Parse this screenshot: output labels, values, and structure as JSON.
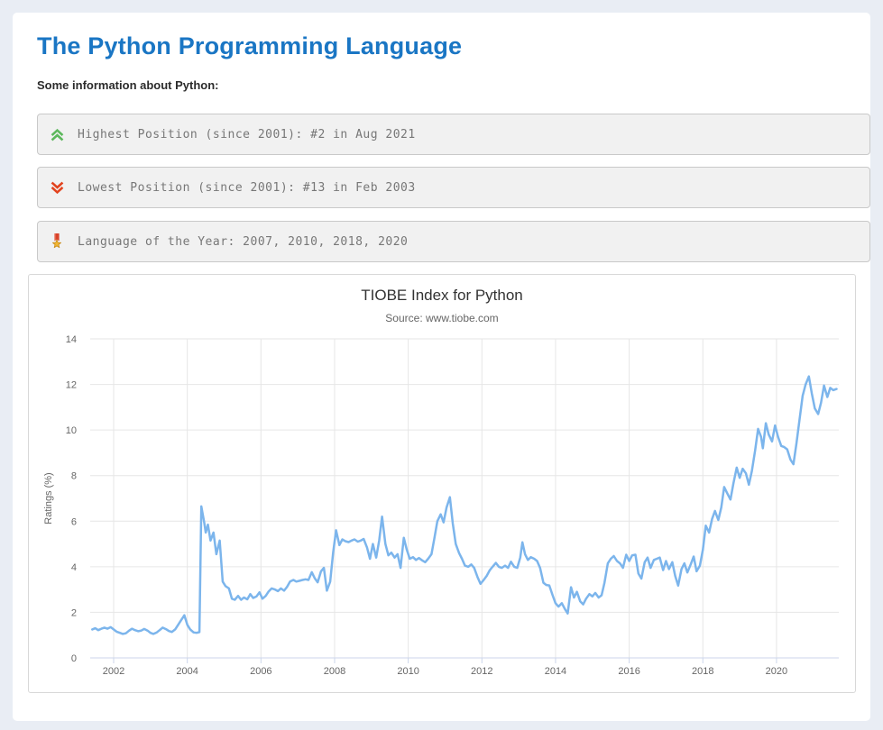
{
  "page": {
    "background": "#e9edf4"
  },
  "header": {
    "title": "The Python Programming Language",
    "intro": "Some information about Python:"
  },
  "facts": [
    {
      "icon": "double-chevron-up-icon",
      "icon_color": "#5cb85c",
      "text": "Highest Position (since 2001): #2 in Aug 2021"
    },
    {
      "icon": "double-chevron-down-icon",
      "icon_color": "#e2431e",
      "text": "Lowest Position (since 2001): #13 in Feb 2003"
    },
    {
      "icon": "medal-icon",
      "icon_color": "#f2b632",
      "ribbon_color": "#d8432a",
      "text": "Language of the Year: 2007, 2010, 2018, 2020"
    }
  ],
  "chart_data": {
    "type": "line",
    "title": "TIOBE Index for Python",
    "subtitle": "Source: www.tiobe.com",
    "xlabel": "",
    "ylabel": "Ratings (%)",
    "ylim": [
      0,
      14
    ],
    "xlim": [
      2001.363,
      2021.692
    ],
    "yticks": [
      0,
      2,
      4,
      6,
      8,
      10,
      12,
      14
    ],
    "xticks": [
      2002,
      2004,
      2006,
      2008,
      2010,
      2012,
      2014,
      2016,
      2018,
      2020
    ],
    "grid": true,
    "legend": "none",
    "line_color": "#7cb5ec",
    "grid_color": "#e6e6e6",
    "axis_color": "#ccd6eb",
    "series": [
      {
        "name": "Python",
        "points": [
          [
            2001.42,
            1.25
          ],
          [
            2001.5,
            1.3
          ],
          [
            2001.58,
            1.22
          ],
          [
            2001.67,
            1.28
          ],
          [
            2001.75,
            1.33
          ],
          [
            2001.83,
            1.28
          ],
          [
            2001.92,
            1.35
          ],
          [
            2002.0,
            1.25
          ],
          [
            2002.08,
            1.15
          ],
          [
            2002.17,
            1.1
          ],
          [
            2002.25,
            1.05
          ],
          [
            2002.33,
            1.08
          ],
          [
            2002.42,
            1.2
          ],
          [
            2002.5,
            1.28
          ],
          [
            2002.58,
            1.22
          ],
          [
            2002.67,
            1.17
          ],
          [
            2002.75,
            1.2
          ],
          [
            2002.83,
            1.27
          ],
          [
            2002.92,
            1.2
          ],
          [
            2003.0,
            1.1
          ],
          [
            2003.08,
            1.05
          ],
          [
            2003.17,
            1.12
          ],
          [
            2003.25,
            1.22
          ],
          [
            2003.33,
            1.33
          ],
          [
            2003.42,
            1.26
          ],
          [
            2003.5,
            1.18
          ],
          [
            2003.58,
            1.14
          ],
          [
            2003.67,
            1.25
          ],
          [
            2003.75,
            1.45
          ],
          [
            2003.83,
            1.65
          ],
          [
            2003.92,
            1.87
          ],
          [
            2004.0,
            1.45
          ],
          [
            2004.08,
            1.25
          ],
          [
            2004.17,
            1.12
          ],
          [
            2004.25,
            1.1
          ],
          [
            2004.33,
            1.13
          ],
          [
            2004.38,
            6.65
          ],
          [
            2004.46,
            5.95
          ],
          [
            2004.5,
            5.5
          ],
          [
            2004.56,
            5.85
          ],
          [
            2004.63,
            5.15
          ],
          [
            2004.71,
            5.5
          ],
          [
            2004.79,
            4.55
          ],
          [
            2004.88,
            5.15
          ],
          [
            2004.96,
            3.35
          ],
          [
            2005.04,
            3.15
          ],
          [
            2005.13,
            3.05
          ],
          [
            2005.21,
            2.6
          ],
          [
            2005.29,
            2.55
          ],
          [
            2005.38,
            2.72
          ],
          [
            2005.46,
            2.55
          ],
          [
            2005.54,
            2.65
          ],
          [
            2005.63,
            2.57
          ],
          [
            2005.71,
            2.8
          ],
          [
            2005.79,
            2.63
          ],
          [
            2005.88,
            2.7
          ],
          [
            2005.96,
            2.88
          ],
          [
            2006.04,
            2.6
          ],
          [
            2006.13,
            2.72
          ],
          [
            2006.21,
            2.92
          ],
          [
            2006.29,
            3.05
          ],
          [
            2006.38,
            3.0
          ],
          [
            2006.46,
            2.93
          ],
          [
            2006.54,
            3.05
          ],
          [
            2006.63,
            2.95
          ],
          [
            2006.71,
            3.12
          ],
          [
            2006.79,
            3.35
          ],
          [
            2006.88,
            3.42
          ],
          [
            2006.96,
            3.35
          ],
          [
            2007.04,
            3.38
          ],
          [
            2007.13,
            3.42
          ],
          [
            2007.21,
            3.45
          ],
          [
            2007.29,
            3.42
          ],
          [
            2007.38,
            3.76
          ],
          [
            2007.46,
            3.5
          ],
          [
            2007.54,
            3.32
          ],
          [
            2007.63,
            3.8
          ],
          [
            2007.71,
            3.95
          ],
          [
            2007.79,
            2.95
          ],
          [
            2007.88,
            3.35
          ],
          [
            2007.96,
            4.6
          ],
          [
            2008.04,
            5.6
          ],
          [
            2008.13,
            4.95
          ],
          [
            2008.21,
            5.2
          ],
          [
            2008.29,
            5.12
          ],
          [
            2008.38,
            5.08
          ],
          [
            2008.46,
            5.15
          ],
          [
            2008.54,
            5.2
          ],
          [
            2008.63,
            5.1
          ],
          [
            2008.71,
            5.15
          ],
          [
            2008.79,
            5.22
          ],
          [
            2008.88,
            4.85
          ],
          [
            2008.96,
            4.35
          ],
          [
            2009.04,
            5.0
          ],
          [
            2009.13,
            4.4
          ],
          [
            2009.21,
            5.15
          ],
          [
            2009.29,
            6.2
          ],
          [
            2009.38,
            5.0
          ],
          [
            2009.46,
            4.5
          ],
          [
            2009.54,
            4.62
          ],
          [
            2009.63,
            4.4
          ],
          [
            2009.71,
            4.55
          ],
          [
            2009.79,
            3.95
          ],
          [
            2009.88,
            5.27
          ],
          [
            2009.96,
            4.75
          ],
          [
            2010.04,
            4.35
          ],
          [
            2010.13,
            4.42
          ],
          [
            2010.21,
            4.3
          ],
          [
            2010.29,
            4.38
          ],
          [
            2010.38,
            4.28
          ],
          [
            2010.46,
            4.2
          ],
          [
            2010.54,
            4.35
          ],
          [
            2010.63,
            4.55
          ],
          [
            2010.71,
            5.25
          ],
          [
            2010.79,
            6.0
          ],
          [
            2010.88,
            6.3
          ],
          [
            2010.96,
            5.95
          ],
          [
            2011.04,
            6.6
          ],
          [
            2011.13,
            7.05
          ],
          [
            2011.21,
            5.9
          ],
          [
            2011.29,
            5.0
          ],
          [
            2011.38,
            4.6
          ],
          [
            2011.46,
            4.35
          ],
          [
            2011.54,
            4.05
          ],
          [
            2011.63,
            4.0
          ],
          [
            2011.71,
            4.1
          ],
          [
            2011.79,
            3.95
          ],
          [
            2011.88,
            3.55
          ],
          [
            2011.96,
            3.25
          ],
          [
            2012.04,
            3.4
          ],
          [
            2012.13,
            3.6
          ],
          [
            2012.21,
            3.84
          ],
          [
            2012.29,
            4.0
          ],
          [
            2012.38,
            4.17
          ],
          [
            2012.46,
            4.0
          ],
          [
            2012.54,
            3.95
          ],
          [
            2012.63,
            4.05
          ],
          [
            2012.71,
            3.95
          ],
          [
            2012.79,
            4.22
          ],
          [
            2012.88,
            4.0
          ],
          [
            2012.96,
            3.95
          ],
          [
            2013.04,
            4.4
          ],
          [
            2013.1,
            5.07
          ],
          [
            2013.17,
            4.55
          ],
          [
            2013.25,
            4.3
          ],
          [
            2013.33,
            4.42
          ],
          [
            2013.42,
            4.35
          ],
          [
            2013.5,
            4.25
          ],
          [
            2013.58,
            3.95
          ],
          [
            2013.67,
            3.3
          ],
          [
            2013.75,
            3.2
          ],
          [
            2013.83,
            3.18
          ],
          [
            2013.92,
            2.75
          ],
          [
            2014.0,
            2.4
          ],
          [
            2014.08,
            2.25
          ],
          [
            2014.17,
            2.4
          ],
          [
            2014.25,
            2.15
          ],
          [
            2014.33,
            1.95
          ],
          [
            2014.42,
            3.1
          ],
          [
            2014.5,
            2.65
          ],
          [
            2014.58,
            2.9
          ],
          [
            2014.67,
            2.48
          ],
          [
            2014.75,
            2.35
          ],
          [
            2014.83,
            2.6
          ],
          [
            2014.92,
            2.8
          ],
          [
            2015.0,
            2.7
          ],
          [
            2015.08,
            2.85
          ],
          [
            2015.17,
            2.65
          ],
          [
            2015.25,
            2.75
          ],
          [
            2015.33,
            3.3
          ],
          [
            2015.42,
            4.15
          ],
          [
            2015.5,
            4.35
          ],
          [
            2015.58,
            4.47
          ],
          [
            2015.67,
            4.25
          ],
          [
            2015.75,
            4.15
          ],
          [
            2015.83,
            3.95
          ],
          [
            2015.92,
            4.53
          ],
          [
            2016.0,
            4.25
          ],
          [
            2016.08,
            4.5
          ],
          [
            2016.17,
            4.53
          ],
          [
            2016.25,
            3.7
          ],
          [
            2016.33,
            3.48
          ],
          [
            2016.42,
            4.2
          ],
          [
            2016.5,
            4.4
          ],
          [
            2016.58,
            3.95
          ],
          [
            2016.67,
            4.3
          ],
          [
            2016.75,
            4.35
          ],
          [
            2016.83,
            4.4
          ],
          [
            2016.92,
            3.85
          ],
          [
            2017.0,
            4.25
          ],
          [
            2017.08,
            3.9
          ],
          [
            2017.17,
            4.2
          ],
          [
            2017.25,
            3.6
          ],
          [
            2017.33,
            3.17
          ],
          [
            2017.42,
            3.9
          ],
          [
            2017.5,
            4.15
          ],
          [
            2017.58,
            3.75
          ],
          [
            2017.67,
            4.1
          ],
          [
            2017.75,
            4.45
          ],
          [
            2017.83,
            3.8
          ],
          [
            2017.92,
            4.05
          ],
          [
            2018.0,
            4.75
          ],
          [
            2018.08,
            5.8
          ],
          [
            2018.17,
            5.5
          ],
          [
            2018.25,
            6.1
          ],
          [
            2018.33,
            6.45
          ],
          [
            2018.42,
            6.05
          ],
          [
            2018.5,
            6.6
          ],
          [
            2018.58,
            7.5
          ],
          [
            2018.67,
            7.2
          ],
          [
            2018.75,
            6.95
          ],
          [
            2018.83,
            7.65
          ],
          [
            2018.92,
            8.35
          ],
          [
            2019.0,
            7.9
          ],
          [
            2019.08,
            8.3
          ],
          [
            2019.17,
            8.1
          ],
          [
            2019.25,
            7.6
          ],
          [
            2019.33,
            8.2
          ],
          [
            2019.42,
            9.1
          ],
          [
            2019.5,
            10.05
          ],
          [
            2019.58,
            9.7
          ],
          [
            2019.63,
            9.2
          ],
          [
            2019.71,
            10.3
          ],
          [
            2019.79,
            9.8
          ],
          [
            2019.88,
            9.5
          ],
          [
            2019.96,
            10.2
          ],
          [
            2020.04,
            9.7
          ],
          [
            2020.13,
            9.3
          ],
          [
            2020.21,
            9.25
          ],
          [
            2020.29,
            9.15
          ],
          [
            2020.38,
            8.7
          ],
          [
            2020.46,
            8.5
          ],
          [
            2020.54,
            9.4
          ],
          [
            2020.63,
            10.5
          ],
          [
            2020.71,
            11.5
          ],
          [
            2020.79,
            12.0
          ],
          [
            2020.88,
            12.35
          ],
          [
            2020.96,
            11.6
          ],
          [
            2021.04,
            10.95
          ],
          [
            2021.13,
            10.7
          ],
          [
            2021.21,
            11.2
          ],
          [
            2021.29,
            11.95
          ],
          [
            2021.38,
            11.45
          ],
          [
            2021.46,
            11.85
          ],
          [
            2021.54,
            11.75
          ],
          [
            2021.63,
            11.8
          ]
        ]
      }
    ]
  }
}
